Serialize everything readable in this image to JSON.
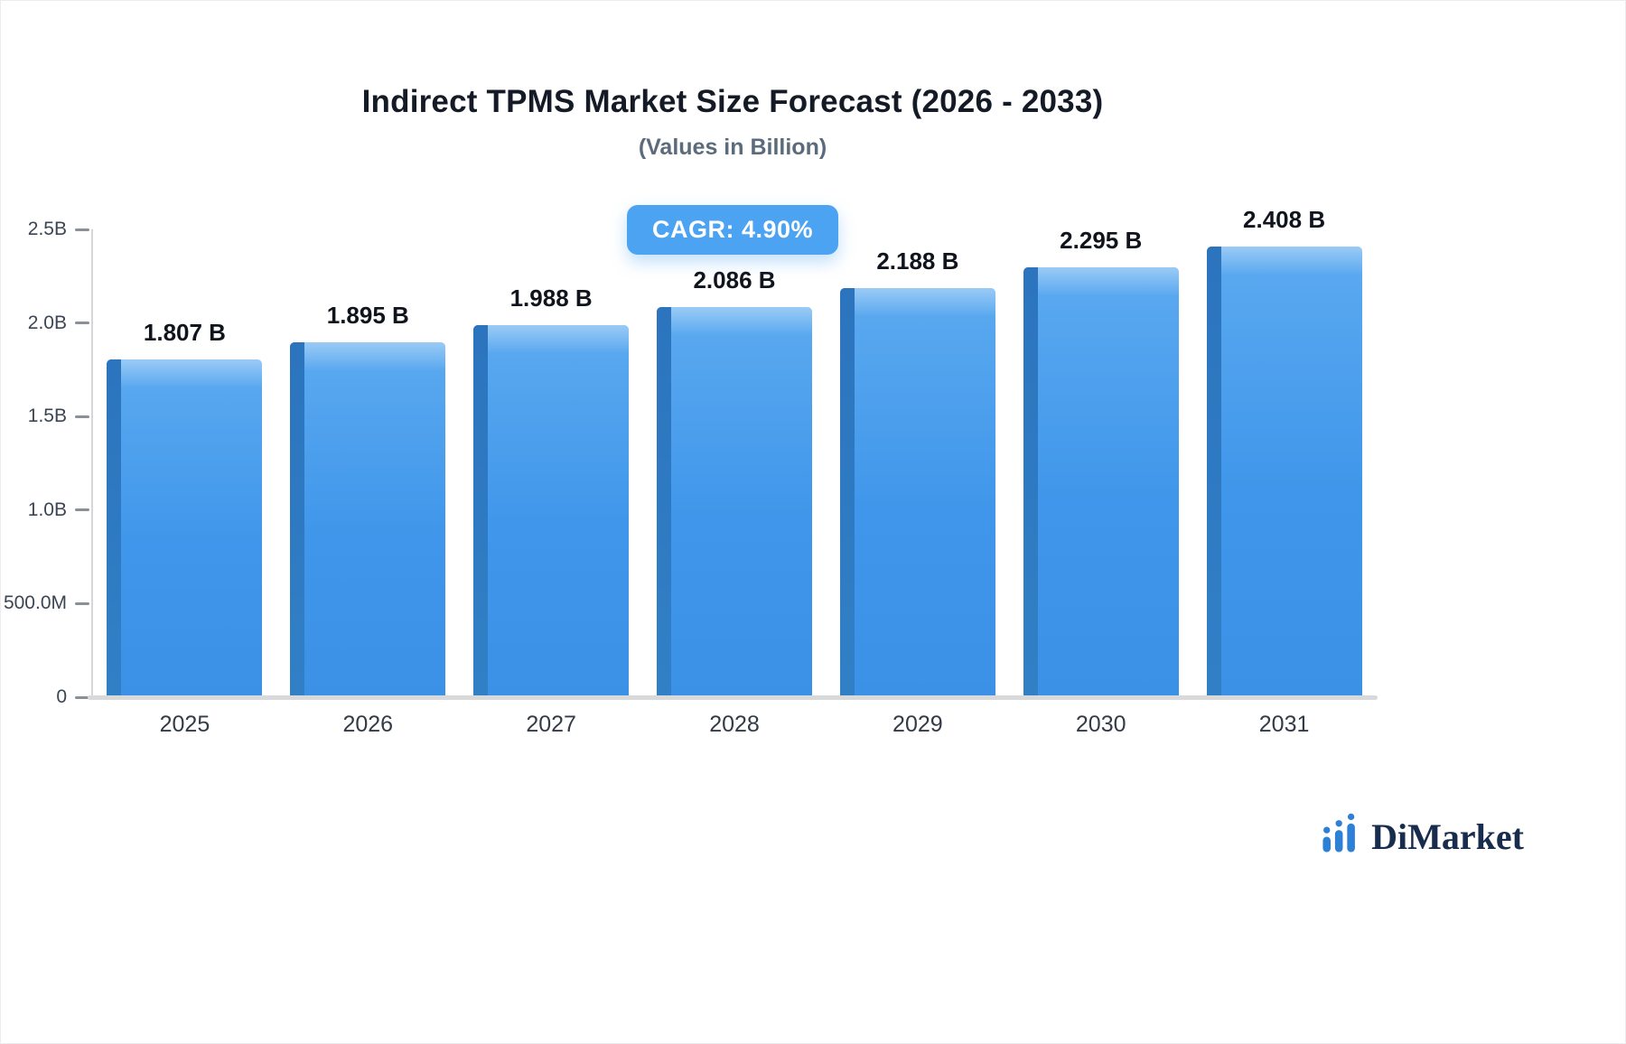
{
  "header": {
    "title": "Indirect TPMS Market Size Forecast (2026 - 2033)",
    "subtitle": "(Values in Billion)"
  },
  "badge": {
    "label": "CAGR: 4.90%"
  },
  "chart_data": {
    "type": "bar",
    "categories": [
      "2025",
      "2026",
      "2027",
      "2028",
      "2029",
      "2030",
      "2031"
    ],
    "values": [
      1.807,
      1.895,
      1.988,
      2.086,
      2.188,
      2.295,
      2.408
    ],
    "value_labels": [
      "1.807 B",
      "1.895 B",
      "1.988 B",
      "2.086 B",
      "2.188 B",
      "2.295 B",
      "2.408 B"
    ],
    "title": "Indirect TPMS Market Size Forecast (2026 - 2033)",
    "subtitle": "(Values in Billion)",
    "xlabel": "",
    "ylabel": "",
    "ylim": [
      0,
      2.5
    ],
    "y_ticks": [
      {
        "value": 0,
        "label": "0"
      },
      {
        "value": 0.5,
        "label": "500.0M"
      },
      {
        "value": 1.0,
        "label": "1.0B"
      },
      {
        "value": 1.5,
        "label": "1.5B"
      },
      {
        "value": 2.0,
        "label": "2.0B"
      },
      {
        "value": 2.5,
        "label": "2.5B"
      }
    ],
    "grid": false,
    "legend": false
  },
  "logo": {
    "text": "DiMarket"
  },
  "colors": {
    "badge_blue": "#4BA3F2",
    "bar_light": "#5CAAF0",
    "bar_main": "#3F96EA",
    "bar_deep": "#3B91E6",
    "bar_side": "#2C74BE",
    "logo_blue": "#2E7FD6",
    "logo_navy": "#182C4D",
    "title_text": "#141B26",
    "subtitle_text": "#5B6B7C"
  }
}
